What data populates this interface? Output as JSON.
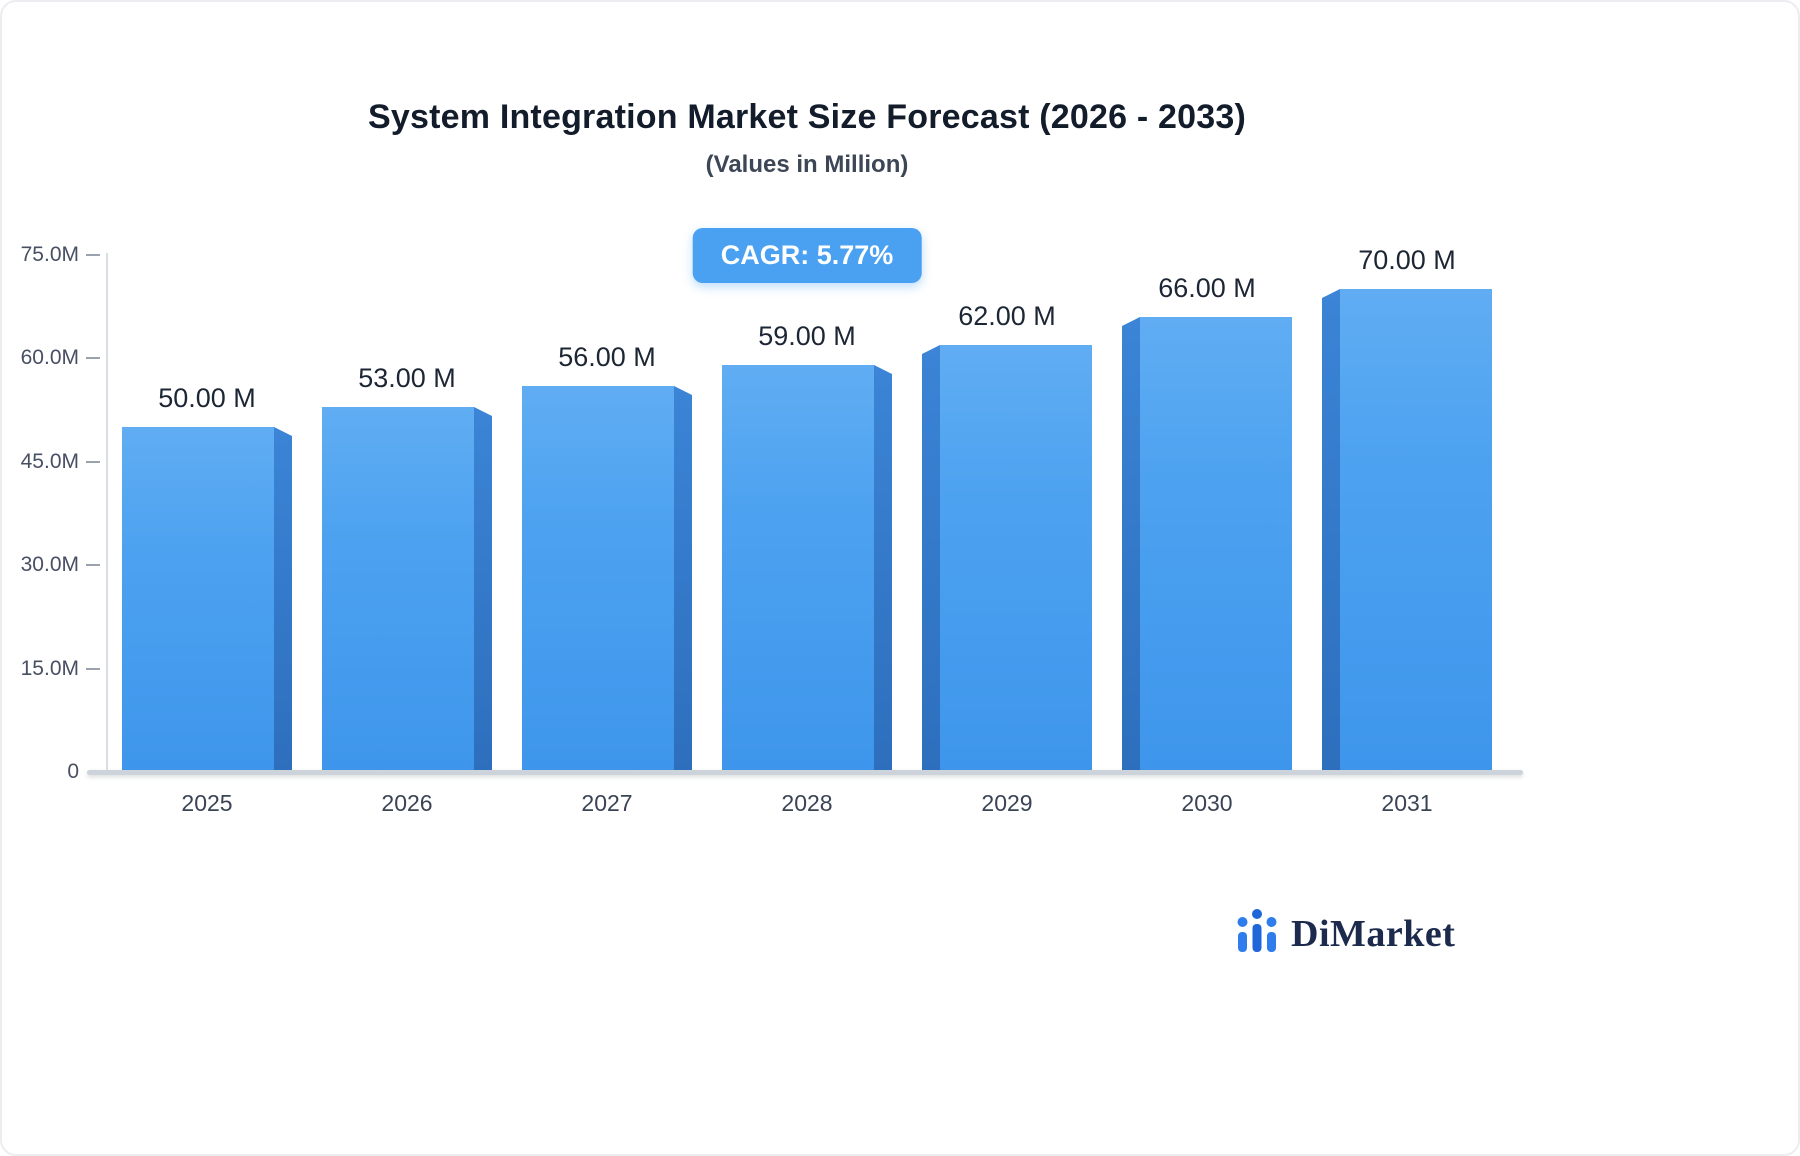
{
  "page": {
    "title": "System Integration Market Size Forecast (2026 - 2033)",
    "subtitle": "(Values in Million)",
    "cagr_badge": "CAGR: 5.77%",
    "brand": {
      "name": "DiMarket",
      "icon": "bar-chart-logo-icon",
      "icon_color": "#2b7ce9",
      "text_color": "#1c2b4d"
    }
  },
  "chart_data": {
    "type": "bar",
    "title": "System Integration Market Size Forecast (2026 - 2033)",
    "subtitle": "(Values in Million)",
    "annotation": "CAGR: 5.77%",
    "categories": [
      "2025",
      "2026",
      "2027",
      "2028",
      "2029",
      "2030",
      "2031"
    ],
    "values": [
      50,
      53,
      56,
      59,
      62,
      66,
      70
    ],
    "value_labels": [
      "50.00 M",
      "53.00 M",
      "56.00 M",
      "59.00 M",
      "62.00 M",
      "66.00 M",
      "70.00 M"
    ],
    "unit": "Million",
    "xlabel": "",
    "ylabel": "",
    "ylim": [
      0,
      75
    ],
    "yticks": [
      0,
      15,
      30,
      45,
      60,
      75
    ],
    "ytick_labels": [
      "0",
      "15.0M",
      "30.0M",
      "45.0M",
      "60.0M",
      "75.0M"
    ],
    "grid": false,
    "legend_position": "none",
    "colors": {
      "bar_front_top": "#60adf3",
      "bar_front_bottom": "#3e96ec",
      "bar_side": "#2d6fbd",
      "badge_background": "#4aa1f1",
      "badge_text": "#ffffff",
      "axis_line": "#ccd3da",
      "label_text": "#1d2634"
    }
  }
}
